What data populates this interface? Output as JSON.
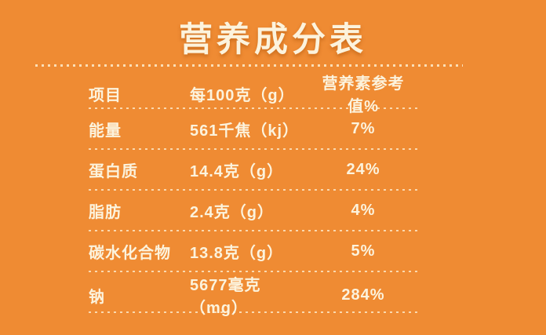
{
  "page": {
    "background_color": "#ef8b33",
    "text_color": "#fcf3dd"
  },
  "title": "营养成分表",
  "table": {
    "headers": {
      "item": "项目",
      "amount": "每100克（g）",
      "nrv": "营养素参考值%"
    },
    "rows": [
      {
        "item": "能量",
        "amount": "561千焦（kj）",
        "nrv": "7%"
      },
      {
        "item": "蛋白质",
        "amount": "14.4克（g）",
        "nrv": "24%"
      },
      {
        "item": "脂肪",
        "amount": "2.4克（g）",
        "nrv": "4%"
      },
      {
        "item": "碳水化合物",
        "amount": "13.8克（g）",
        "nrv": "5%"
      },
      {
        "item": "钠",
        "amount": "5677毫克（mg）",
        "nrv": "284%"
      }
    ]
  }
}
